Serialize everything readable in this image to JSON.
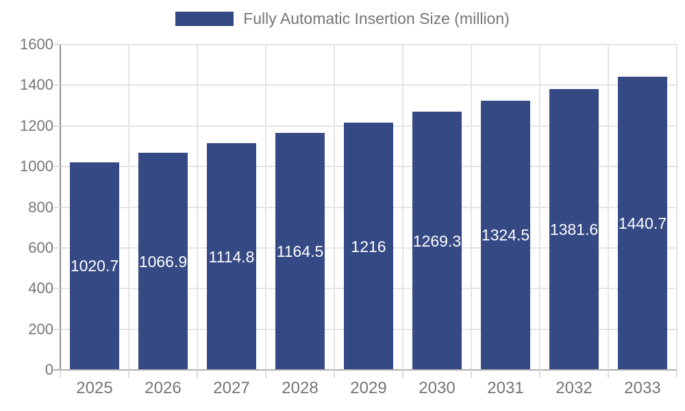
{
  "legend": {
    "items": [
      {
        "label": "Fully Automatic Insertion Size (million)",
        "color": "#354984"
      }
    ]
  },
  "chart_data": {
    "type": "bar",
    "title": "",
    "xlabel": "",
    "ylabel": "",
    "categories": [
      "2025",
      "2026",
      "2027",
      "2028",
      "2029",
      "2030",
      "2031",
      "2032",
      "2033"
    ],
    "series": [
      {
        "name": "Fully Automatic Insertion Size (million)",
        "values": [
          1020.7,
          1066.9,
          1114.8,
          1164.5,
          1216,
          1269.3,
          1324.5,
          1381.6,
          1440.7
        ],
        "value_labels": [
          "1020.7",
          "1066.9",
          "1114.8",
          "1164.5",
          "1216",
          "1269.3",
          "1324.5",
          "1381.6",
          "1440.7"
        ],
        "color": "#354984"
      }
    ],
    "ylim": [
      0,
      1600
    ],
    "yticks": [
      0,
      200,
      400,
      600,
      800,
      1000,
      1200,
      1400,
      1600
    ],
    "ytick_labels": [
      "0",
      "200",
      "400",
      "600",
      "800",
      "1000",
      "1200",
      "1400",
      "1600"
    ],
    "grid": true,
    "legend_position": "top",
    "colors": {
      "bar": "#354984",
      "gridline": "#E4E4E4",
      "tick": "#DDDDDD",
      "y_axis_line": "#8C8C8C",
      "x_axis_line": "#AFAFAF",
      "axis_text": "#757575",
      "value_label": "#FFFFFF",
      "background": "#FFFFFF"
    }
  }
}
